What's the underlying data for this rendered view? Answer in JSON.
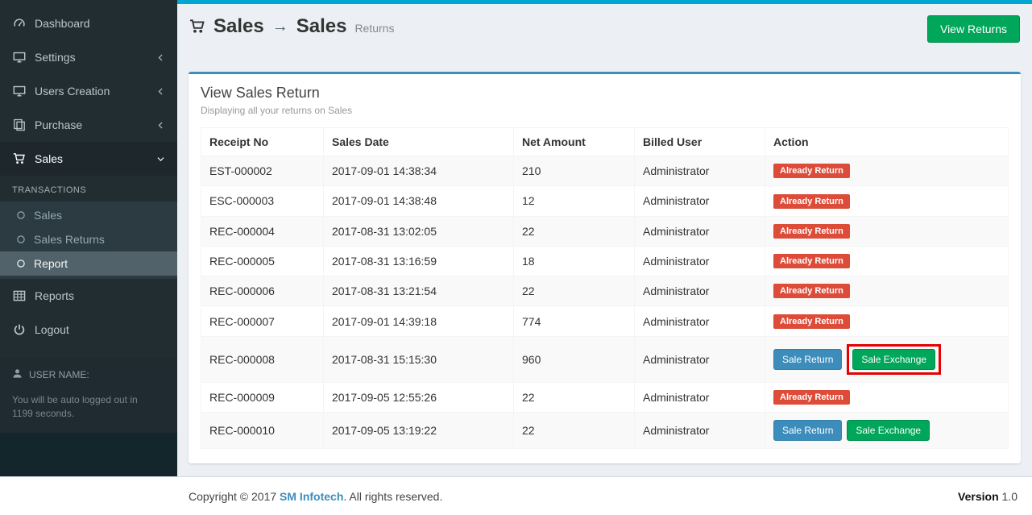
{
  "colors": {
    "topbar": "#00a7d0",
    "accent_blue": "#3c8dbc",
    "green": "#00a65a",
    "red": "#dd4b39",
    "highlight_red": "#e60000",
    "sidebar_bg": "#222d32",
    "sidebar_active_bg": "#1e282c",
    "submenu_bg": "#2c3b41",
    "content_bg": "#ecf0f5"
  },
  "icons": {
    "sidebar_items": [
      "dashboard-icon",
      "monitor-icon",
      "monitor-icon",
      "files-icon",
      "cart-icon"
    ],
    "submenu_bullet": "circle-icon",
    "reports": "table-icon",
    "logout": "power-icon",
    "user": "user-icon",
    "page_header": "cart-icon",
    "chevron_collapsed": "chevron-left-icon",
    "chevron_expanded": "chevron-down-icon"
  },
  "sidebar": {
    "items": [
      {
        "label": "Dashboard"
      },
      {
        "label": "Settings"
      },
      {
        "label": "Users Creation"
      },
      {
        "label": "Purchase"
      },
      {
        "label": "Sales",
        "active": true
      }
    ],
    "transactions_label": "TRANSACTIONS",
    "submenu": [
      {
        "label": "Sales"
      },
      {
        "label": "Sales Returns"
      },
      {
        "label": "Report",
        "highlighted": true
      }
    ],
    "reports_label": "Reports",
    "logout_label": "Logout",
    "user_label": "USER NAME:",
    "logout_notice": "You will be auto logged out in 1199 seconds."
  },
  "page_header": {
    "title": "Sales",
    "separator": "→",
    "subtitle_main": "Sales",
    "subtitle_small": "Returns",
    "button": "View Returns"
  },
  "card": {
    "title": "View Sales Return",
    "subtitle": "Displaying all your returns on Sales",
    "action_labels": {
      "already_return": "Already Return",
      "sale_return": "Sale Return",
      "sale_exchange": "Sale Exchange"
    },
    "table": {
      "columns": [
        "Receipt No",
        "Sales Date",
        "Net Amount",
        "Billed User",
        "Action"
      ],
      "rows": [
        {
          "receipt_no": "EST-000002",
          "sales_date": "2017-09-01 14:38:34",
          "net_amount": "210",
          "billed_user": "Administrator",
          "actions": [
            {
              "type": "already_return"
            }
          ]
        },
        {
          "receipt_no": "ESC-000003",
          "sales_date": "2017-09-01 14:38:48",
          "net_amount": "12",
          "billed_user": "Administrator",
          "actions": [
            {
              "type": "already_return"
            }
          ]
        },
        {
          "receipt_no": "REC-000004",
          "sales_date": "2017-08-31 13:02:05",
          "net_amount": "22",
          "billed_user": "Administrator",
          "actions": [
            {
              "type": "already_return"
            }
          ]
        },
        {
          "receipt_no": "REC-000005",
          "sales_date": "2017-08-31 13:16:59",
          "net_amount": "18",
          "billed_user": "Administrator",
          "actions": [
            {
              "type": "already_return"
            }
          ]
        },
        {
          "receipt_no": "REC-000006",
          "sales_date": "2017-08-31 13:21:54",
          "net_amount": "22",
          "billed_user": "Administrator",
          "actions": [
            {
              "type": "already_return"
            }
          ]
        },
        {
          "receipt_no": "REC-000007",
          "sales_date": "2017-09-01 14:39:18",
          "net_amount": "774",
          "billed_user": "Administrator",
          "actions": [
            {
              "type": "already_return"
            }
          ]
        },
        {
          "receipt_no": "REC-000008",
          "sales_date": "2017-08-31 15:15:30",
          "net_amount": "960",
          "billed_user": "Administrator",
          "actions": [
            {
              "type": "sale_return"
            },
            {
              "type": "sale_exchange",
              "highlighted": true
            }
          ]
        },
        {
          "receipt_no": "REC-000009",
          "sales_date": "2017-09-05 12:55:26",
          "net_amount": "22",
          "billed_user": "Administrator",
          "actions": [
            {
              "type": "already_return"
            }
          ]
        },
        {
          "receipt_no": "REC-000010",
          "sales_date": "2017-09-05 13:19:22",
          "net_amount": "22",
          "billed_user": "Administrator",
          "actions": [
            {
              "type": "sale_return"
            },
            {
              "type": "sale_exchange"
            }
          ]
        }
      ]
    }
  },
  "footer": {
    "copyright_prefix": "Copyright © 2017",
    "company": "SM Infotech",
    "copyright_suffix": ". All rights reserved.",
    "version_label": "Version",
    "version_value": "1.0"
  }
}
